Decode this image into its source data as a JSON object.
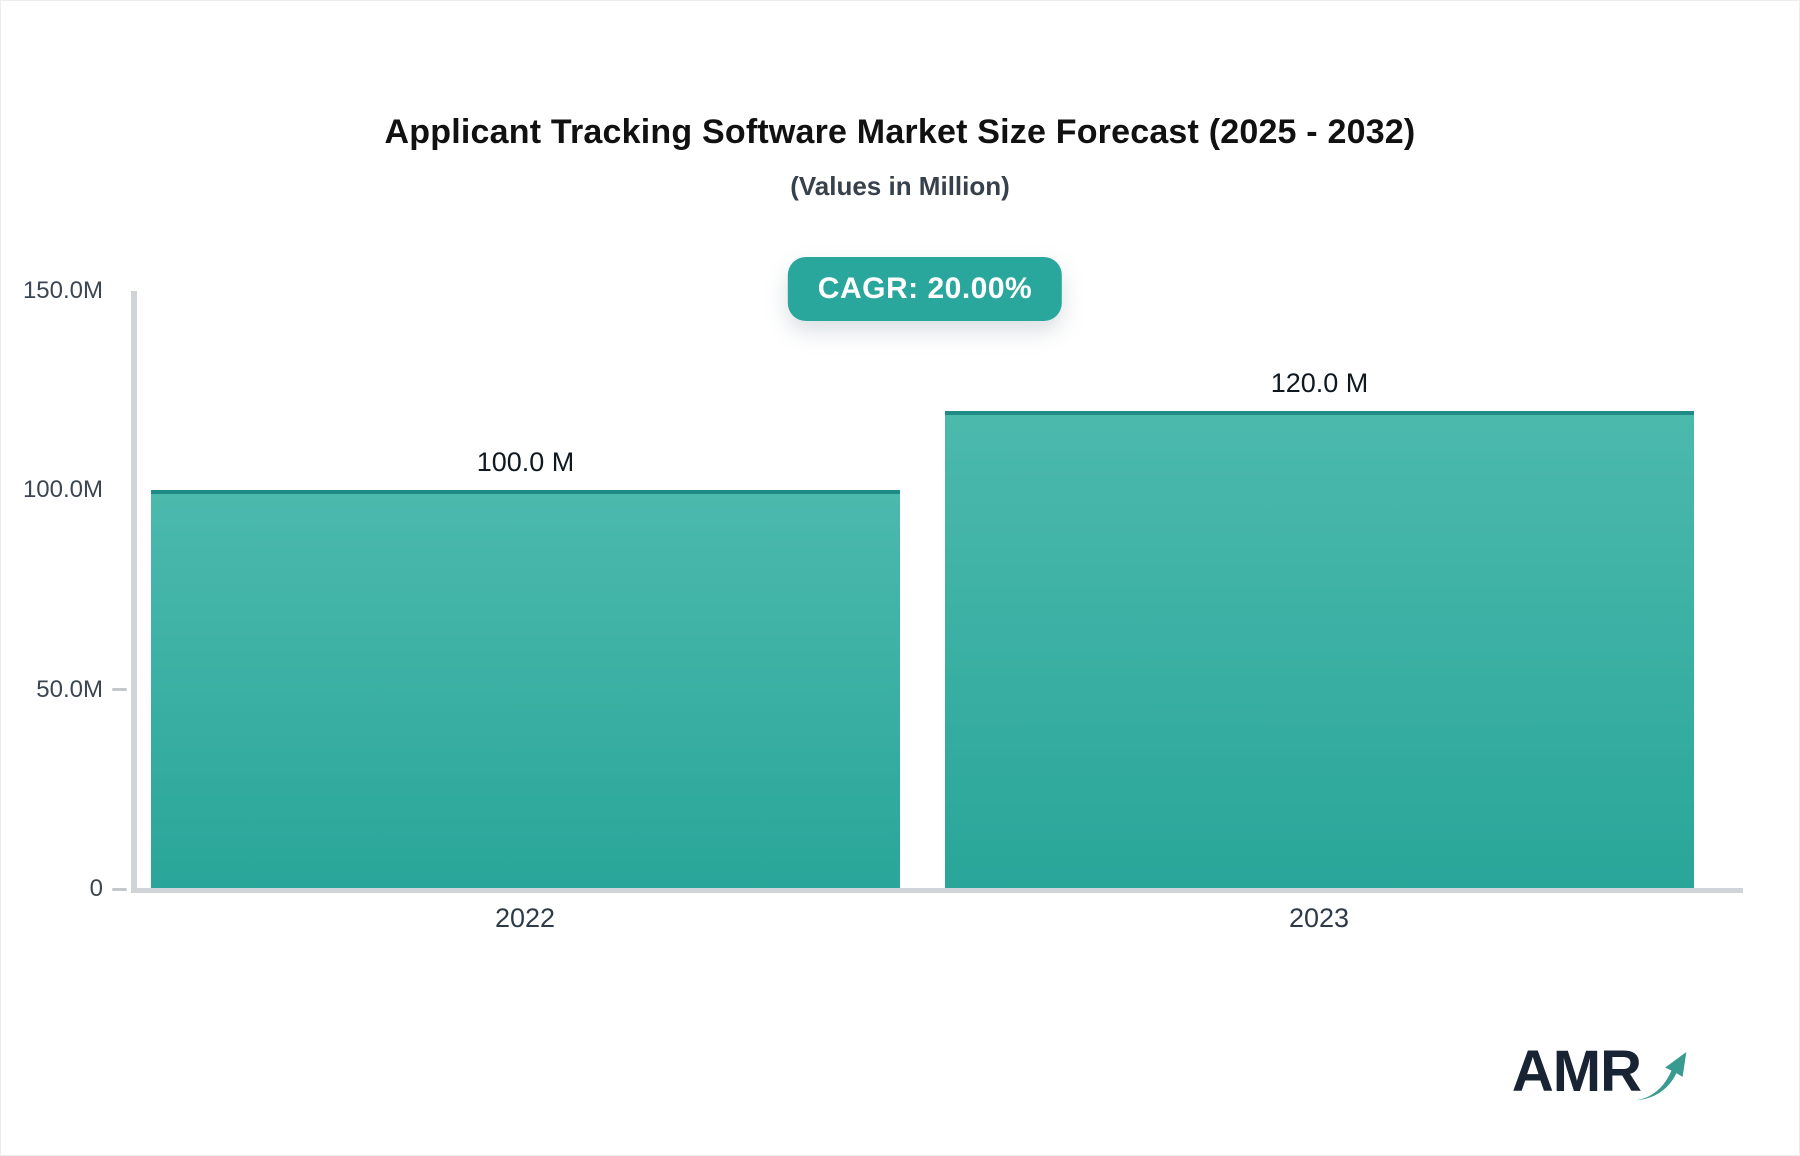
{
  "header": {
    "title": "Applicant Tracking Software Market Size Forecast (2025 - 2032)",
    "subtitle": "(Values in Million)",
    "cagr_label": "CAGR: 20.00%"
  },
  "chart_data": {
    "type": "bar",
    "title": "Applicant Tracking Software Market Size Forecast (2025 - 2032)",
    "subtitle": "(Values in Million)",
    "categories": [
      "2022",
      "2023"
    ],
    "values": [
      100.0,
      120.0
    ],
    "bar_labels": [
      "100.0 M",
      "120.0 M"
    ],
    "xlabel": "",
    "ylabel": "",
    "ylim": [
      0,
      150
    ],
    "y_ticks": [
      {
        "label": "150.0M",
        "value": 150,
        "dash": false
      },
      {
        "label": "100.0M",
        "value": 100,
        "dash": false
      },
      {
        "label": "50.0M",
        "value": 50,
        "dash": true
      },
      {
        "label": "0",
        "value": 0,
        "dash": true
      }
    ],
    "annotations": [
      "CAGR: 20.00%"
    ],
    "grid": false,
    "legend": false
  },
  "colors": {
    "bar_gradient_top": "#4cb9ad",
    "bar_gradient_bottom": "#29a699",
    "bar_top_border": "#1e8c84",
    "badge_bg": "#2aa79c",
    "badge_text": "#ffffff",
    "axis_line": "#d0d4d8",
    "title_text": "#111111",
    "subtitle_text": "#37414b",
    "tick_text": "#3c4652",
    "category_text": "#2e3a49",
    "logo_text": "#182434",
    "logo_arrow": "#379b8f"
  },
  "logo": {
    "text": "AMR"
  }
}
